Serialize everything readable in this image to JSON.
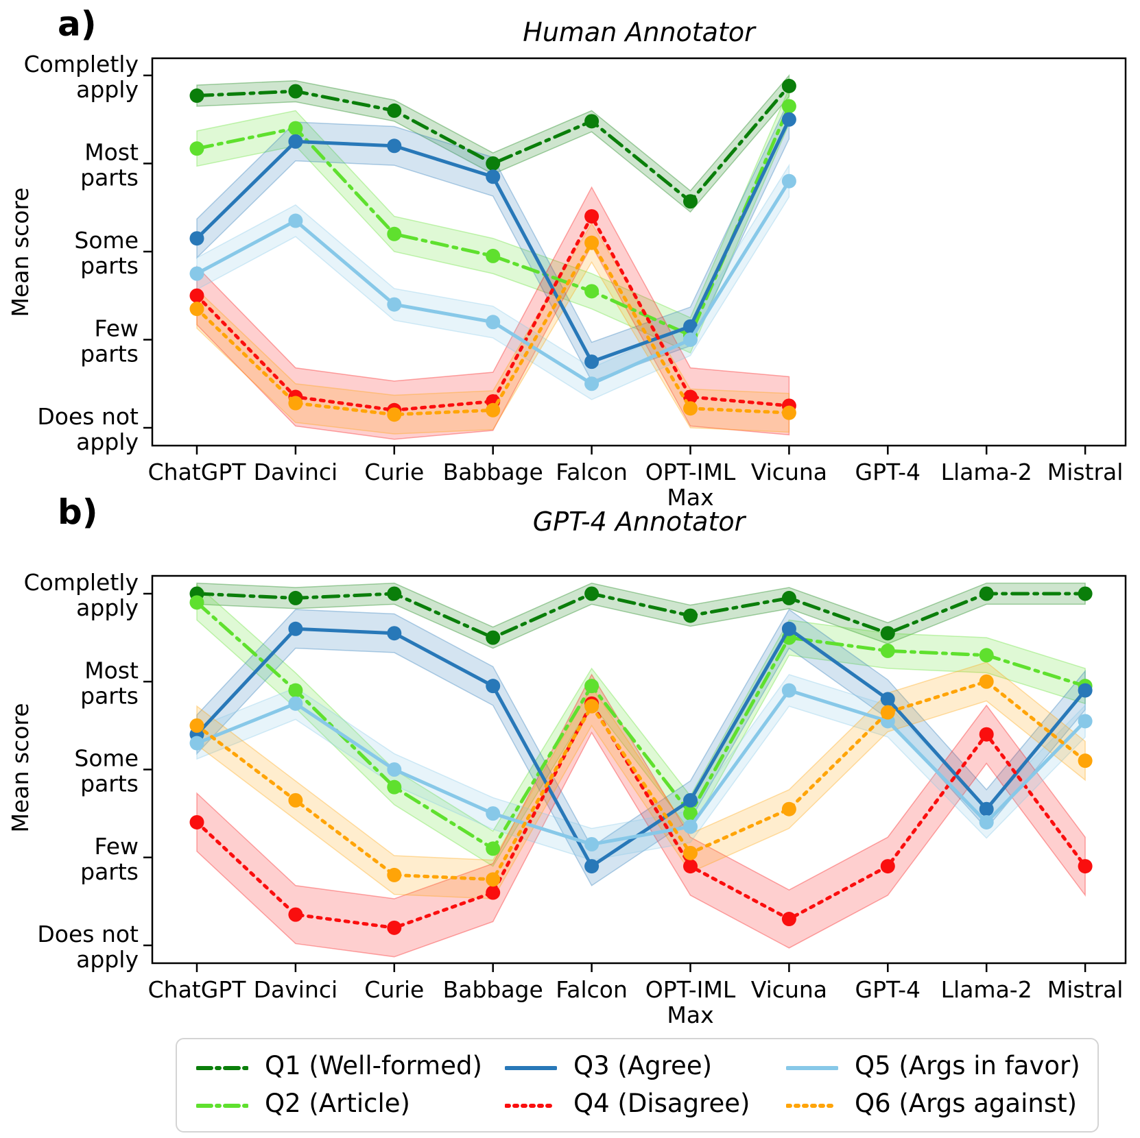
{
  "figure": {
    "panel_a_label": "a)",
    "panel_b_label": "b)",
    "ylabel": "Mean score"
  },
  "series_styles": {
    "q1": {
      "label": "Q1 (Well-formed)",
      "color": "#0a7e0a",
      "dash": "dashdot"
    },
    "q2": {
      "label": "Q2 (Article)",
      "color": "#5fe02e",
      "dash": "dashdot"
    },
    "q3": {
      "label": "Q3 (Agree)",
      "color": "#2878b8",
      "dash": "solid"
    },
    "q4": {
      "label": "Q4 (Disagree)",
      "color": "#fa0e0e",
      "dash": "dotted"
    },
    "q5": {
      "label": "Q5 (Args in favor)",
      "color": "#87c8e8",
      "dash": "solid"
    },
    "q6": {
      "label": "Q6 (Args against)",
      "color": "#ffa408",
      "dash": "dotted"
    }
  },
  "legend": {
    "items": [
      {
        "id": "q1",
        "label": "Q1 (Well-formed)"
      },
      {
        "id": "q3",
        "label": "Q3 (Agree)"
      },
      {
        "id": "q5",
        "label": "Q5 (Args in favor)"
      },
      {
        "id": "q2",
        "label": "Q2 (Article)"
      },
      {
        "id": "q4",
        "label": "Q4 (Disagree)"
      },
      {
        "id": "q6",
        "label": "Q6 (Args against)"
      }
    ]
  },
  "chart_data": [
    {
      "type": "line",
      "panel": "a",
      "title": "Human Annotator",
      "ylabel": "Mean score",
      "categories": [
        "ChatGPT",
        "Davinci",
        "Curie",
        "Babbage",
        "Falcon",
        "OPT-IML\nMax",
        "Vicuna",
        "GPT-4",
        "Llama-2",
        "Mistral"
      ],
      "yticklabels": [
        "Does not\napply",
        "Few\nparts",
        "Some\nparts",
        "Most\nparts",
        "Completly\napply"
      ],
      "ylim": [
        -0.2,
        4.2
      ],
      "grid": false,
      "legend_position": "below-figure",
      "series": [
        {
          "id": "q1",
          "name": "Q1 (Well-formed)",
          "band": 0.12,
          "values": [
            3.77,
            3.82,
            3.6,
            3.0,
            3.48,
            2.57,
            3.88,
            null,
            null,
            null
          ]
        },
        {
          "id": "q2",
          "name": "Q2 (Article)",
          "band": 0.2,
          "values": [
            3.17,
            3.4,
            2.2,
            1.95,
            1.55,
            1.05,
            3.65,
            null,
            null,
            null
          ]
        },
        {
          "id": "q3",
          "name": "Q3 (Agree)",
          "band": 0.22,
          "values": [
            2.15,
            3.25,
            3.2,
            2.85,
            0.75,
            1.15,
            3.5,
            null,
            null,
            null
          ]
        },
        {
          "id": "q4",
          "name": "Q4 (Disagree)",
          "band": 0.33,
          "values": [
            1.5,
            0.35,
            0.2,
            0.3,
            2.4,
            0.35,
            0.25,
            null,
            null,
            null
          ]
        },
        {
          "id": "q5",
          "name": "Q5 (Args in favor)",
          "band": 0.18,
          "values": [
            1.75,
            2.35,
            1.4,
            1.2,
            0.5,
            1.0,
            2.8,
            null,
            null,
            null
          ]
        },
        {
          "id": "q6",
          "name": "Q6 (Args against)",
          "band": 0.22,
          "values": [
            1.35,
            0.28,
            0.15,
            0.2,
            2.1,
            0.22,
            0.17,
            null,
            null,
            null
          ]
        }
      ]
    },
    {
      "type": "line",
      "panel": "b",
      "title": "GPT-4 Annotator",
      "ylabel": "Mean score",
      "categories": [
        "ChatGPT",
        "Davinci",
        "Curie",
        "Babbage",
        "Falcon",
        "OPT-IML\nMax",
        "Vicuna",
        "GPT-4",
        "Llama-2",
        "Mistral"
      ],
      "yticklabels": [
        "Does not\napply",
        "Few\nparts",
        "Some\nparts",
        "Most\nparts",
        "Completly\napply"
      ],
      "ylim": [
        -0.2,
        4.2
      ],
      "grid": false,
      "legend_position": "below-figure",
      "series": [
        {
          "id": "q1",
          "name": "Q1 (Well-formed)",
          "band": 0.12,
          "values": [
            4.0,
            3.95,
            4.0,
            3.5,
            4.0,
            3.75,
            3.95,
            3.55,
            4.0,
            4.0
          ]
        },
        {
          "id": "q2",
          "name": "Q2 (Article)",
          "band": 0.2,
          "values": [
            3.9,
            2.9,
            1.8,
            1.1,
            2.95,
            1.5,
            3.5,
            3.35,
            3.3,
            2.95
          ]
        },
        {
          "id": "q3",
          "name": "Q3 (Agree)",
          "band": 0.22,
          "values": [
            2.4,
            3.6,
            3.55,
            2.95,
            0.9,
            1.65,
            3.6,
            2.8,
            1.55,
            2.9
          ]
        },
        {
          "id": "q4",
          "name": "Q4 (Disagree)",
          "band": 0.33,
          "values": [
            1.4,
            0.35,
            0.2,
            0.6,
            2.75,
            0.9,
            0.3,
            0.9,
            2.4,
            0.9
          ]
        },
        {
          "id": "q5",
          "name": "Q5 (Args in favor)",
          "band": 0.18,
          "values": [
            2.3,
            2.75,
            2.0,
            1.5,
            1.15,
            1.35,
            2.9,
            2.55,
            1.4,
            2.55
          ]
        },
        {
          "id": "q6",
          "name": "Q6 (Args against)",
          "band": 0.22,
          "values": [
            2.5,
            1.65,
            0.8,
            0.75,
            2.72,
            1.05,
            1.55,
            2.65,
            3.0,
            2.1
          ]
        }
      ]
    }
  ]
}
